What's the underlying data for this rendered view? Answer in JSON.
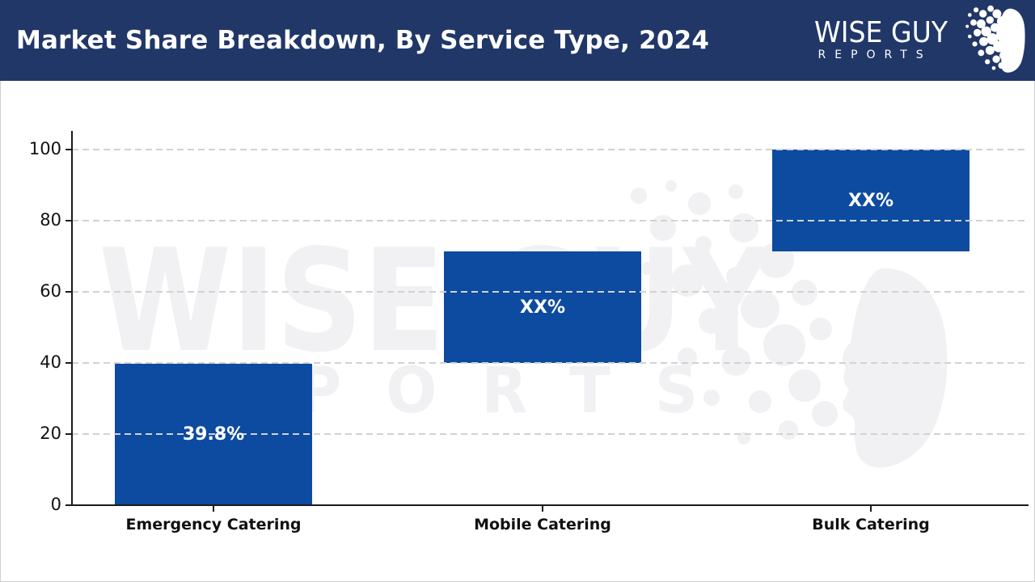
{
  "header": {
    "title": "Market Share Breakdown, By Service Type, 2024",
    "logo": {
      "name": "WISE GUY",
      "subtitle": "REPORTS"
    }
  },
  "watermark": {
    "line1": "WISE GUY",
    "line2": "REPORTS"
  },
  "colors": {
    "header-bg": "#213768",
    "bar": "#0c4ba0",
    "grid": "#d2d2d2",
    "axis": "#1a1a1a",
    "watermark": "#f1f1f4"
  },
  "chart_data": {
    "type": "bar",
    "variant": "floating-stacked-percentage",
    "title": "Market Share Breakdown, By Service Type, 2024",
    "categories": [
      "Emergency Catering",
      "Mobile Catering",
      "Bulk Catering"
    ],
    "bars": [
      {
        "category": "Emergency Catering",
        "label": "39.8%",
        "base": 0,
        "top": 39.8
      },
      {
        "category": "Mobile Catering",
        "label": "XX%",
        "base": 40,
        "top": 71.4
      },
      {
        "category": "Bulk Catering",
        "label": "XX%",
        "base": 71.4,
        "top": 100
      }
    ],
    "xlabel": "",
    "ylabel": "",
    "ylim": [
      0,
      100
    ],
    "yticks": [
      0,
      20,
      40,
      60,
      80,
      100
    ],
    "grid": "horizontal-dashed-over-bars",
    "legend": "none"
  }
}
